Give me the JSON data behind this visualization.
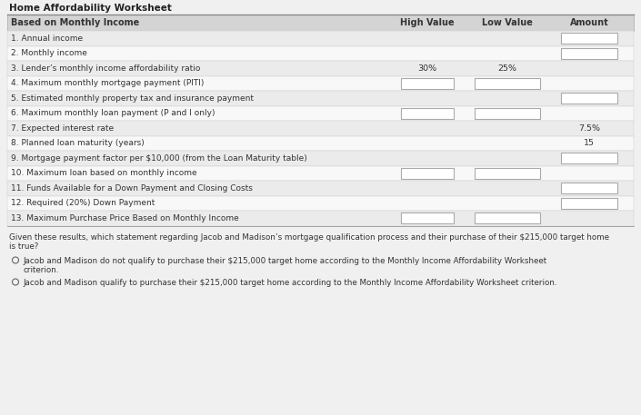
{
  "title": "Home Affordability Worksheet",
  "header_col1": "Based on Monthly Income",
  "header_col2": "High Value",
  "header_col3": "Low Value",
  "header_col4": "Amount",
  "rows": [
    {
      "num": "1.",
      "label": "Annual income",
      "high": false,
      "low": false,
      "amount": true,
      "bg": "light",
      "high_text": "",
      "low_text": "",
      "amount_text": ""
    },
    {
      "num": "2.",
      "label": "Monthly income",
      "high": false,
      "low": false,
      "amount": true,
      "bg": "white",
      "high_text": "",
      "low_text": "",
      "amount_text": ""
    },
    {
      "num": "3.",
      "label": "Lender’s monthly income affordability ratio",
      "high": false,
      "low": false,
      "amount": false,
      "bg": "light",
      "high_text": "30%",
      "low_text": "25%",
      "amount_text": ""
    },
    {
      "num": "4.",
      "label": "Maximum monthly mortgage payment (PITI)",
      "high": true,
      "low": true,
      "amount": false,
      "bg": "white",
      "high_text": "",
      "low_text": "",
      "amount_text": ""
    },
    {
      "num": "5.",
      "label": "Estimated monthly property tax and insurance payment",
      "high": false,
      "low": false,
      "amount": true,
      "bg": "light",
      "high_text": "",
      "low_text": "",
      "amount_text": ""
    },
    {
      "num": "6.",
      "label": "Maximum monthly loan payment (P and I only)",
      "high": true,
      "low": true,
      "amount": false,
      "bg": "white",
      "high_text": "",
      "low_text": "",
      "amount_text": ""
    },
    {
      "num": "7.",
      "label": "Expected interest rate",
      "high": false,
      "low": false,
      "amount": false,
      "bg": "light",
      "high_text": "",
      "low_text": "",
      "amount_text": "7.5%"
    },
    {
      "num": "8.",
      "label": "Planned loan maturity (years)",
      "high": false,
      "low": false,
      "amount": false,
      "bg": "white",
      "high_text": "",
      "low_text": "",
      "amount_text": "15"
    },
    {
      "num": "9.",
      "label": "Mortgage payment factor per $10,000 (from the Loan Maturity table)",
      "high": false,
      "low": false,
      "amount": true,
      "bg": "light",
      "high_text": "",
      "low_text": "",
      "amount_text": ""
    },
    {
      "num": "10.",
      "label": "Maximum loan based on monthly income",
      "high": true,
      "low": true,
      "amount": false,
      "bg": "white",
      "high_text": "",
      "low_text": "",
      "amount_text": ""
    },
    {
      "num": "11.",
      "label": "Funds Available for a Down Payment and Closing Costs",
      "high": false,
      "low": false,
      "amount": true,
      "bg": "light",
      "high_text": "",
      "low_text": "",
      "amount_text": ""
    },
    {
      "num": "12.",
      "label": "Required (20%) Down Payment",
      "high": false,
      "low": false,
      "amount": true,
      "bg": "white",
      "high_text": "",
      "low_text": "",
      "amount_text": ""
    },
    {
      "num": "13.",
      "label": "Maximum Purchase Price Based on Monthly Income",
      "high": true,
      "low": true,
      "amount": false,
      "bg": "light",
      "high_text": "",
      "low_text": "",
      "amount_text": ""
    }
  ],
  "question_text": "Given these results, which statement regarding Jacob and Madison’s mortgage qualification process and their purchase of their $215,000 target home",
  "question_text2": "is true?",
  "option1_line1": "Jacob and Madison do not qualify to purchase their $215,000 target home according to the Monthly Income Affordability Worksheet",
  "option1_line2": "criterion.",
  "option2": "Jacob and Madison qualify to purchase their $215,000 target home according to the Monthly Income Affordability Worksheet criterion.",
  "bg_light": "#ebebeb",
  "bg_white": "#f8f8f8",
  "bg_header": "#d4d4d4",
  "box_color": "#ffffff",
  "box_border": "#aaaaaa",
  "text_color": "#333333",
  "title_color": "#222222",
  "page_bg": "#f0f0f0"
}
